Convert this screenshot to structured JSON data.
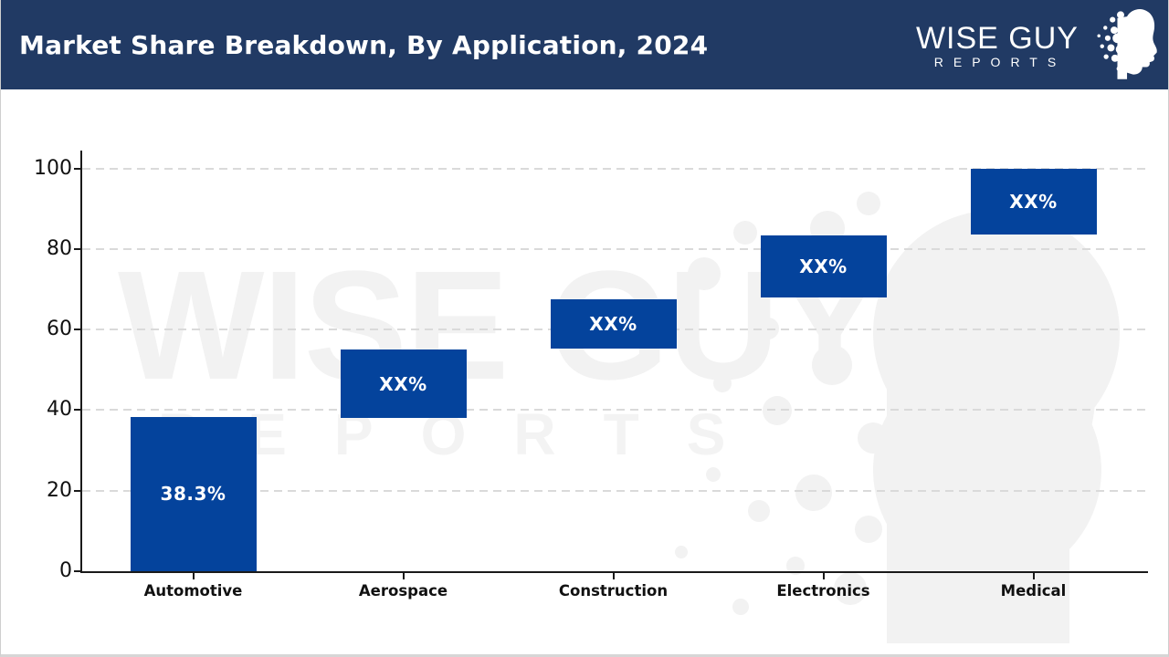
{
  "header": {
    "title": "Market Share Breakdown, By Application, 2024",
    "background_color": "#213A64",
    "logo": {
      "line1": "WISE GUY",
      "line2": "REPORTS",
      "mark": "dotted-face-profile"
    }
  },
  "watermark": {
    "line1": "WISE GUY",
    "line2": "REPORTS",
    "mark": "dotted-face-profile",
    "color": "#F2F2F2"
  },
  "chart_data": {
    "type": "bar",
    "subtype": "waterfall-breakdown",
    "title": "Market Share Breakdown, By Application, 2024",
    "categories": [
      "Automotive",
      "Aerospace",
      "Construction",
      "Electronics",
      "Medical"
    ],
    "segments": [
      {
        "category": "Automotive",
        "start": 0,
        "end": 38.3,
        "label": "38.3%"
      },
      {
        "category": "Aerospace",
        "start": 38.0,
        "end": 55.1,
        "label": "XX%"
      },
      {
        "category": "Construction",
        "start": 55.2,
        "end": 67.6,
        "label": "XX%"
      },
      {
        "category": "Electronics",
        "start": 68.0,
        "end": 83.4,
        "label": "XX%"
      },
      {
        "category": "Medical",
        "start": 83.5,
        "end": 99.8,
        "label": "XX%"
      }
    ],
    "yticks": [
      0,
      20,
      40,
      60,
      80,
      100
    ],
    "ylim": [
      0,
      105
    ],
    "xlabel": "",
    "ylabel": "",
    "grid": "horizontal-dashed",
    "legend": "none",
    "bar_color": "#04439C",
    "bar_label_color": "#FFFFFF",
    "axis_color": "#1A1A1A",
    "gridline_color": "#DADADA"
  }
}
